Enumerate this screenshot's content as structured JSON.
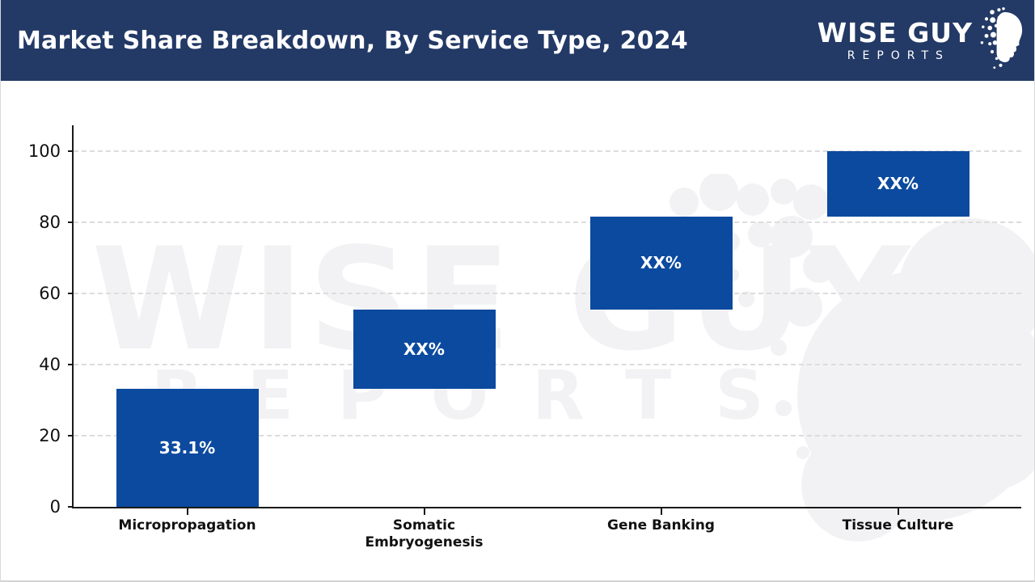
{
  "header": {
    "title": "Market Share Breakdown, By Service Type, 2024",
    "logo": {
      "wordmark": "WISE GUY",
      "reports": "REPORTS"
    }
  },
  "watermark": {
    "wordmark": "WISE GUY",
    "reports": "REPORTS"
  },
  "colors": {
    "header_bg": "#233966",
    "bar": "#0b4a9f",
    "grid": "#dcdcdc",
    "watermark": "#f2f2f4"
  },
  "chart_data": {
    "type": "bar",
    "subtype": "waterfall",
    "title": "Market Share Breakdown, By Service Type, 2024",
    "categories": [
      "Micropropagation",
      "Somatic Embryogenesis",
      "Gene Banking",
      "Tissue Culture"
    ],
    "segments": [
      {
        "category": "Micropropagation",
        "start": 0,
        "end": 33.1,
        "label": "33.1%"
      },
      {
        "category": "Somatic Embryogenesis",
        "start": 33.1,
        "end": 55.4,
        "label": "XX%"
      },
      {
        "category": "Gene Banking",
        "start": 55.4,
        "end": 81.7,
        "label": "XX%"
      },
      {
        "category": "Tissue Culture",
        "start": 81.7,
        "end": 100,
        "label": "XX%"
      }
    ],
    "ylim": [
      0,
      107
    ],
    "yticks": [
      0,
      20,
      40,
      60,
      80,
      100
    ],
    "xlabel": "",
    "ylabel": "",
    "grid": "horizontal-dashed",
    "legend": "none",
    "bar_color": "#0b4a9f"
  }
}
